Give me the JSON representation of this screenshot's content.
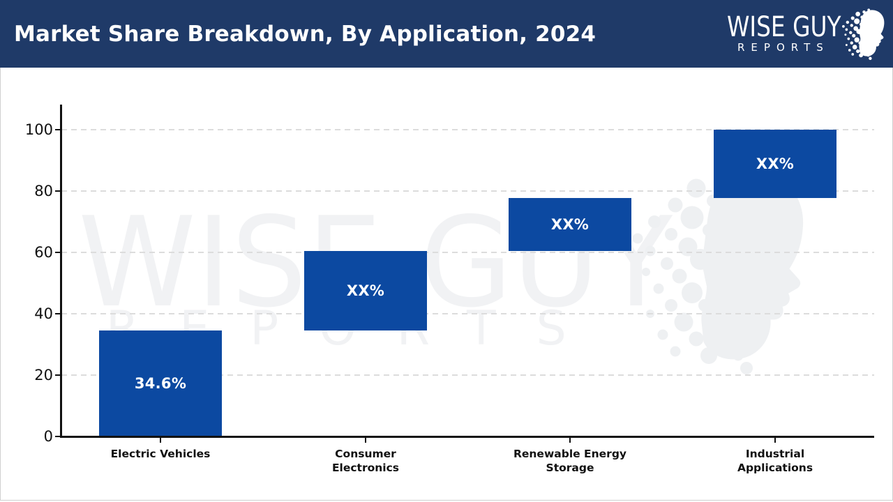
{
  "page": {
    "background": "#ffffff",
    "frame_border_color": "#cfcfcf"
  },
  "header": {
    "title": "Market Share Breakdown, By Application, 2024",
    "background": "#1f3a68",
    "title_color": "#ffffff",
    "logo": {
      "wordmark": "WISE GUY",
      "subtext": "REPORTS",
      "color": "#ffffff"
    }
  },
  "watermark": {
    "wordmark": "WISE GUY",
    "subtext": "REPORTS",
    "text_color": "#f1f2f4",
    "face_color": "#eef0f2"
  },
  "chart_data": {
    "type": "bar",
    "subtype": "floating-waterfall",
    "title": "Market Share Breakdown, By Application, 2024",
    "categories": [
      "Electric Vehicles",
      "Consumer Electronics",
      "Renewable Energy Storage",
      "Industrial Applications"
    ],
    "category_lines": [
      [
        "Electric Vehicles"
      ],
      [
        "Consumer",
        "Electronics"
      ],
      [
        "Renewable Energy",
        "Storage"
      ],
      [
        "Industrial",
        "Applications"
      ]
    ],
    "segments": [
      {
        "category": "Electric Vehicles",
        "start": 0,
        "end": 34.6,
        "label": "34.6%"
      },
      {
        "category": "Consumer Electronics",
        "start": 34.6,
        "end": 60.4,
        "label": "XX%"
      },
      {
        "category": "Renewable Energy Storage",
        "start": 60.4,
        "end": 77.7,
        "label": "XX%"
      },
      {
        "category": "Industrial Applications",
        "start": 77.8,
        "end": 100,
        "label": "XX%"
      }
    ],
    "xlabel": "",
    "ylabel": "",
    "ylim": [
      0,
      100
    ],
    "yticks": [
      0,
      20,
      40,
      60,
      80,
      100
    ],
    "grid": {
      "horizontal": true,
      "style": "dashed",
      "color": "#dcdcdc"
    },
    "legend": "none",
    "bar_color": "#0c49a1",
    "bar_label_color": "#ffffff",
    "axis_color": "#111111",
    "tick_label_color": "#111111"
  }
}
